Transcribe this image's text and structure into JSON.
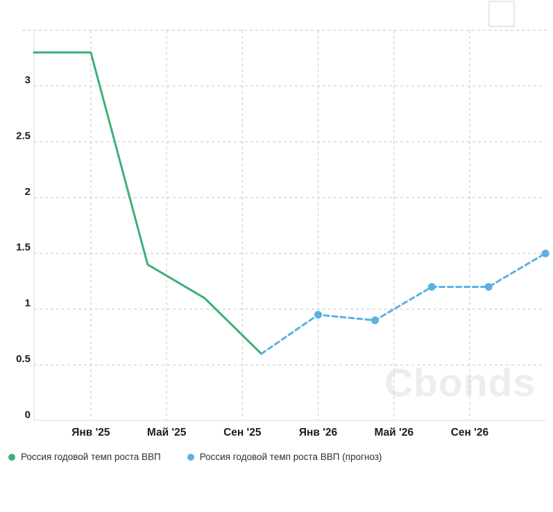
{
  "chart_data": {
    "type": "line",
    "title": "",
    "xlabel": "",
    "ylabel": "",
    "x_unit": "months since Окт '24",
    "ylim": [
      0,
      3.5
    ],
    "grid": true,
    "legend_position": "bottom-left",
    "watermark": "Cbonds",
    "y_ticks": [
      {
        "value": 0,
        "label": "0"
      },
      {
        "value": 0.5,
        "label": "0.5"
      },
      {
        "value": 1,
        "label": "1"
      },
      {
        "value": 1.5,
        "label": "1.5"
      },
      {
        "value": 2,
        "label": "2"
      },
      {
        "value": 2.5,
        "label": "2.5"
      },
      {
        "value": 3,
        "label": "3"
      }
    ],
    "x_ticks": [
      {
        "x": 3,
        "label": "Янв '25"
      },
      {
        "x": 7,
        "label": "Май '25"
      },
      {
        "x": 11,
        "label": "Сен '25"
      },
      {
        "x": 15,
        "label": "Янв '26"
      },
      {
        "x": 19,
        "label": "Май '26"
      },
      {
        "x": 23,
        "label": "Сен '26"
      }
    ],
    "series": [
      {
        "name": "Россия годовой темп роста ВВП",
        "color": "#3bb077",
        "dashed": false,
        "markers": false,
        "points": [
          {
            "x": 0,
            "date": "Окт '24",
            "y": 3.3
          },
          {
            "x": 3,
            "date": "Янв '25",
            "y": 3.3
          },
          {
            "x": 6,
            "date": "Апр '25",
            "y": 1.4
          },
          {
            "x": 9,
            "date": "Июл '25",
            "y": 1.1
          },
          {
            "x": 12,
            "date": "Окт '25",
            "y": 0.6
          }
        ]
      },
      {
        "name": "Россия годовой темп роста ВВП (прогноз)",
        "color": "#5bb1e3",
        "dashed": true,
        "markers": true,
        "marker_skip_first": true,
        "points": [
          {
            "x": 12,
            "date": "Окт '25",
            "y": 0.6
          },
          {
            "x": 15,
            "date": "Янв '26",
            "y": 0.95
          },
          {
            "x": 18,
            "date": "Апр '26",
            "y": 0.9
          },
          {
            "x": 21,
            "date": "Июл '26",
            "y": 1.2
          },
          {
            "x": 24,
            "date": "Окт '26",
            "y": 1.2
          },
          {
            "x": 27,
            "date": "Янв '27",
            "y": 1.5
          }
        ]
      }
    ]
  },
  "legend": {
    "items": [
      {
        "label": "Россия годовой темп роста ВВП"
      },
      {
        "label": "Россия годовой темп роста ВВП (прогноз)"
      }
    ]
  }
}
